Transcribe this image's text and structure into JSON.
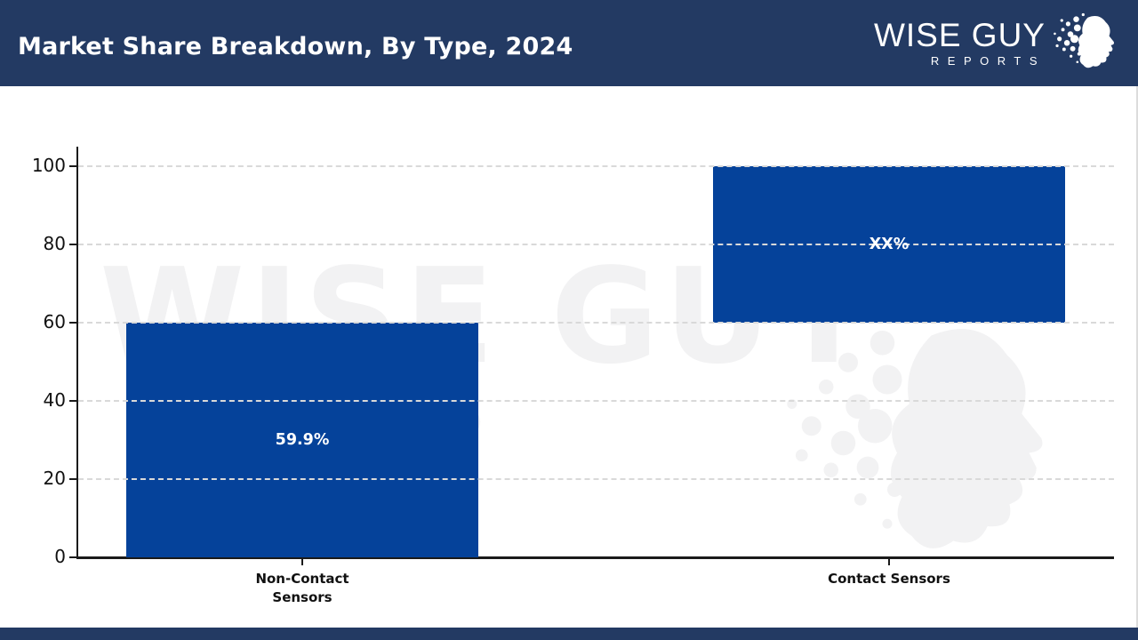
{
  "header": {
    "title": "Market Share Breakdown, By Type, 2024",
    "logo_line1": "WISE GUY",
    "logo_line2": "REPORTS",
    "bg_color": "#233a63"
  },
  "watermark": {
    "line1": "WISE GUY",
    "line2": "R T S",
    "color": "#f2f2f3"
  },
  "chart_data": {
    "type": "bar",
    "variant": "floating-stacked-waterfall",
    "title": "Market Share Breakdown, By Type, 2024",
    "categories": [
      "Non-Contact Sensors",
      "Contact Sensors"
    ],
    "category_label_lines": [
      [
        "Non-Contact",
        "Sensors"
      ],
      [
        "Contact Sensors"
      ]
    ],
    "bars": [
      {
        "category": "Non-Contact Sensors",
        "start": 0,
        "end": 59.9,
        "label": "59.9%"
      },
      {
        "category": "Contact Sensors",
        "start": 59.9,
        "end": 100,
        "label": "XX%"
      }
    ],
    "ylim": [
      0,
      100
    ],
    "yticks": [
      0,
      20,
      40,
      60,
      80,
      100
    ],
    "grid": "horizontal-dashed-over-bars",
    "legend": "none",
    "bar_color": "#05429a",
    "grid_color": "#d9d9d9",
    "value_label_color": "#ffffff"
  }
}
